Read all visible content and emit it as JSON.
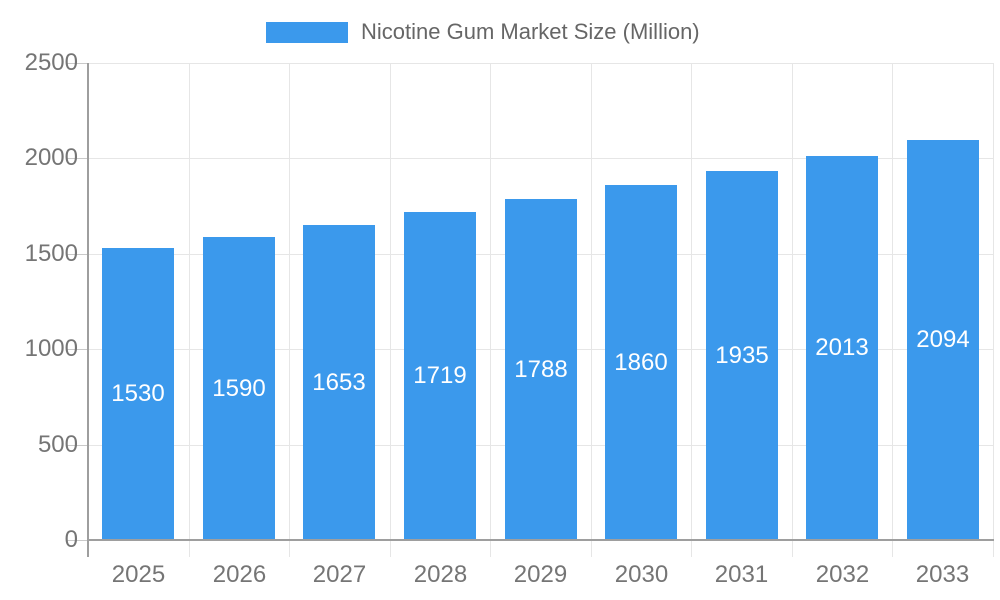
{
  "legend": {
    "label": "Nicotine Gum Market Size (Million)"
  },
  "chart_data": {
    "type": "bar",
    "title": "Nicotine Gum Market Size (Million)",
    "categories": [
      "2025",
      "2026",
      "2027",
      "2028",
      "2029",
      "2030",
      "2031",
      "2032",
      "2033"
    ],
    "values": [
      1530,
      1590,
      1653,
      1719,
      1788,
      1860,
      1935,
      2013,
      2094
    ],
    "xlabel": "",
    "ylabel": "",
    "ylim": [
      0,
      2500
    ],
    "yticks": [
      0,
      500,
      1000,
      1500,
      2000,
      2500
    ],
    "grid": true,
    "legend_position": "top",
    "value_labels": "inside-center",
    "colors": {
      "bar": "#3b99ec",
      "value_label": "#ffffff",
      "gridline": "#e6e6e6",
      "axis_line": "#9e9e9e",
      "tick": "#c9c9c9",
      "axis_text": "#757575",
      "legend_text": "#666666",
      "background": "#ffffff"
    }
  }
}
